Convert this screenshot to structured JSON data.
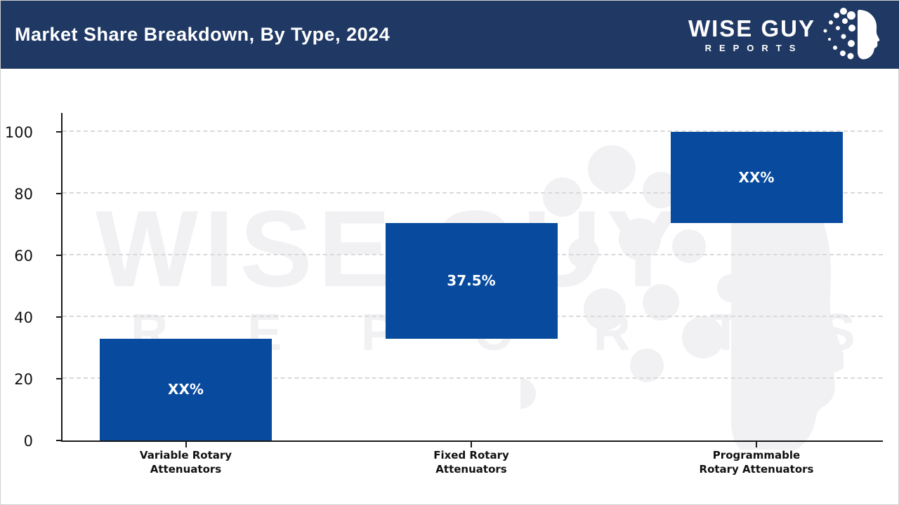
{
  "header": {
    "title": "Market Share Breakdown, By Type, 2024",
    "bg_color": "#1f3864",
    "logo": {
      "line1": "WISE GUY",
      "line2": "REPORTS"
    }
  },
  "watermark": {
    "line1": "WISE GUY",
    "line2": "R E P O R T S"
  },
  "chart_data": {
    "type": "bar",
    "subtype": "floating-segment-waterfall",
    "title": "Market Share Breakdown, By Type, 2024",
    "categories": [
      [
        "Variable Rotary",
        "Attenuators"
      ],
      [
        "Fixed Rotary",
        "Attenuators"
      ],
      [
        "Programmable",
        "Rotary Attenuators"
      ]
    ],
    "segments": [
      {
        "start": 0,
        "end": 33,
        "label": "XX%"
      },
      {
        "start": 33,
        "end": 70.5,
        "label": "37.5%"
      },
      {
        "start": 70.5,
        "end": 100,
        "label": "XX%"
      }
    ],
    "yticks": [
      0,
      20,
      40,
      60,
      80,
      100
    ],
    "ylim": [
      0,
      106
    ],
    "xlabel": "",
    "ylabel": "",
    "grid": "horizontal-dashed",
    "legend": "none",
    "bar_color": "#074a9e",
    "grid_color": "#d9d9d9",
    "axis_color": "#1a1a1a"
  }
}
